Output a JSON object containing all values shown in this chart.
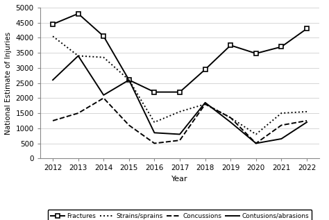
{
  "years": [
    2012,
    2013,
    2014,
    2015,
    2016,
    2017,
    2018,
    2019,
    2020,
    2021,
    2022
  ],
  "fractures": [
    4450,
    4800,
    4050,
    2600,
    2200,
    2200,
    2950,
    3750,
    3480,
    3700,
    4300
  ],
  "strains_sprains": [
    4050,
    3400,
    3350,
    2600,
    1200,
    1550,
    1800,
    1350,
    800,
    1500,
    1550
  ],
  "concussions": [
    1250,
    1500,
    2000,
    1100,
    500,
    600,
    1800,
    1350,
    500,
    1100,
    1250
  ],
  "contusions_abrasions": [
    2600,
    3400,
    2100,
    2600,
    850,
    800,
    1850,
    1200,
    500,
    650,
    1200
  ],
  "ylabel": "National Estimate of Injuries",
  "xlabel": "Year",
  "ylim": [
    0,
    5000
  ],
  "yticks": [
    0,
    500,
    1000,
    1500,
    2000,
    2500,
    3000,
    3500,
    4000,
    4500,
    5000
  ],
  "legend_labels": [
    "Fractures",
    "Strains/sprains",
    "Concussions",
    "Contusions/abrasions"
  ],
  "line_color": "#000000",
  "background_color": "#ffffff",
  "grid_color": "#d0d0d0"
}
